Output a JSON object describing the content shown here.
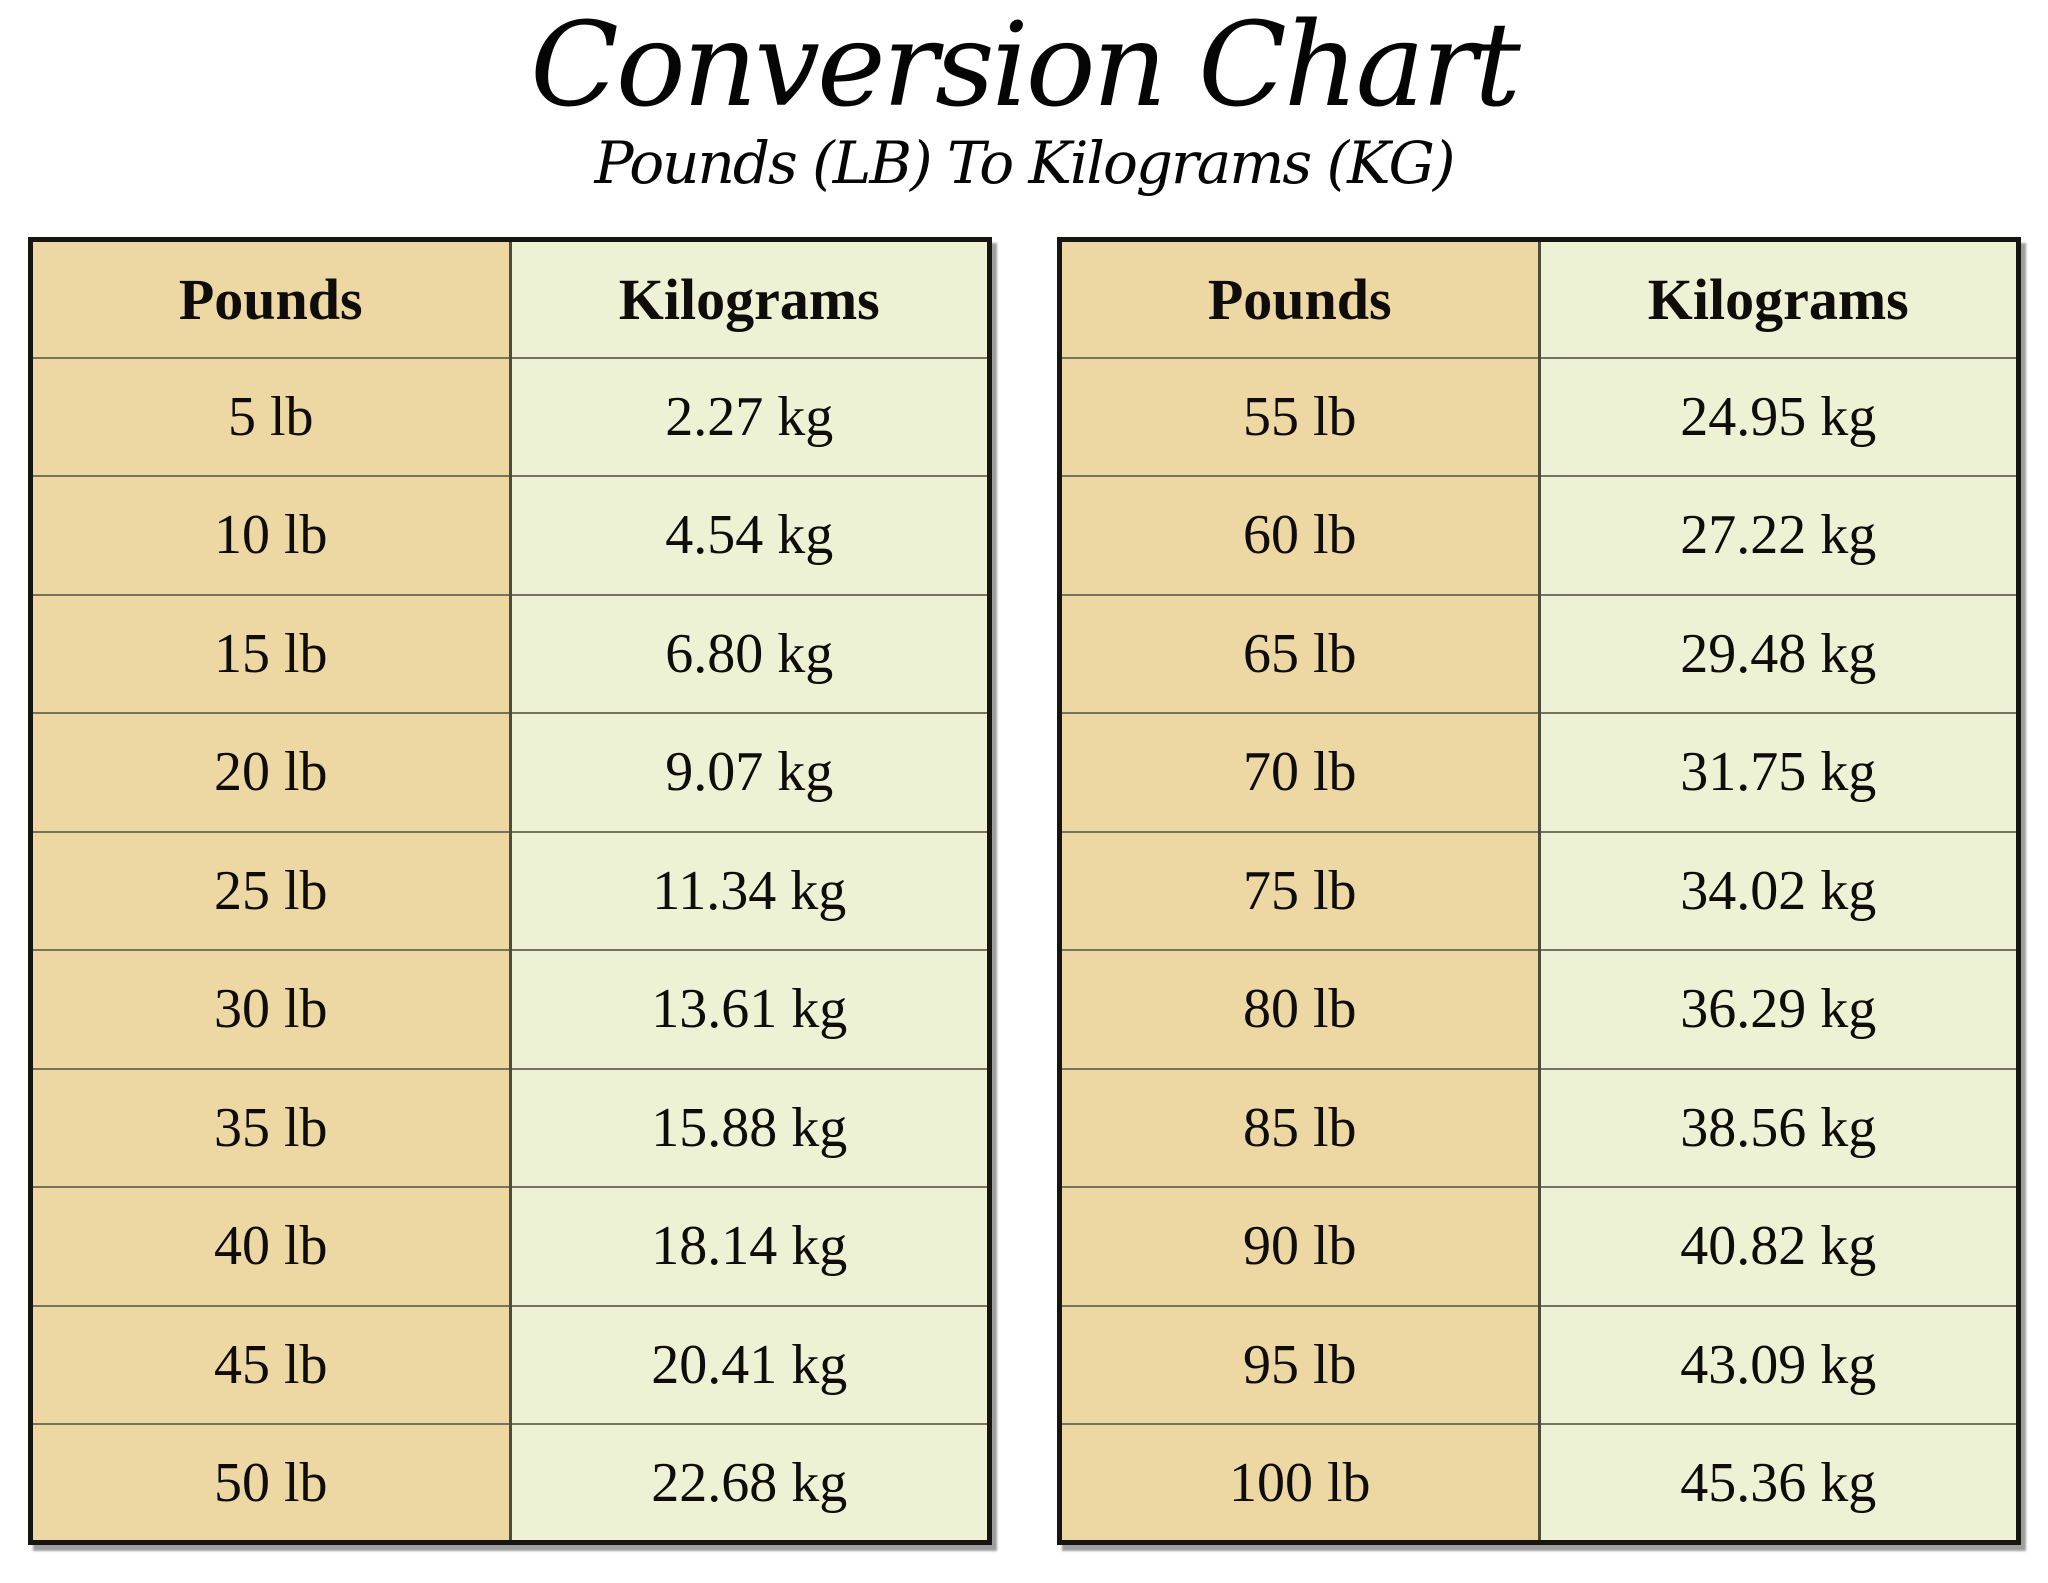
{
  "page": {
    "title": "Conversion Chart",
    "subtitle": "Pounds (LB) To Kilograms (KG)"
  },
  "colors": {
    "pounds_column_bg": "#edd8a4",
    "kilograms_column_bg": "#eef2d4",
    "outer_border": "#161511",
    "row_divider": "#74745e",
    "column_divider": "#4c4c3b",
    "text": "#0e0d0b",
    "page_bg": "#ffffff"
  },
  "tables": [
    {
      "headers": {
        "pounds": "Pounds",
        "kilograms": "Kilograms"
      },
      "rows": [
        {
          "pounds": "5 lb",
          "kilograms": "2.27 kg"
        },
        {
          "pounds": "10 lb",
          "kilograms": "4.54 kg"
        },
        {
          "pounds": "15 lb",
          "kilograms": "6.80 kg"
        },
        {
          "pounds": "20 lb",
          "kilograms": "9.07 kg"
        },
        {
          "pounds": "25 lb",
          "kilograms": "11.34 kg"
        },
        {
          "pounds": "30 lb",
          "kilograms": "13.61 kg"
        },
        {
          "pounds": "35 lb",
          "kilograms": "15.88 kg"
        },
        {
          "pounds": "40 lb",
          "kilograms": "18.14 kg"
        },
        {
          "pounds": "45 lb",
          "kilograms": "20.41 kg"
        },
        {
          "pounds": "50 lb",
          "kilograms": "22.68 kg"
        }
      ]
    },
    {
      "headers": {
        "pounds": "Pounds",
        "kilograms": "Kilograms"
      },
      "rows": [
        {
          "pounds": "55 lb",
          "kilograms": "24.95 kg"
        },
        {
          "pounds": "60 lb",
          "kilograms": "27.22 kg"
        },
        {
          "pounds": "65 lb",
          "kilograms": "29.48 kg"
        },
        {
          "pounds": "70 lb",
          "kilograms": "31.75 kg"
        },
        {
          "pounds": "75 lb",
          "kilograms": "34.02 kg"
        },
        {
          "pounds": "80 lb",
          "kilograms": "36.29 kg"
        },
        {
          "pounds": "85 lb",
          "kilograms": "38.56 kg"
        },
        {
          "pounds": "90 lb",
          "kilograms": "40.82 kg"
        },
        {
          "pounds": "95 lb",
          "kilograms": "43.09 kg"
        },
        {
          "pounds": "100 lb",
          "kilograms": "45.36 kg"
        }
      ]
    }
  ]
}
